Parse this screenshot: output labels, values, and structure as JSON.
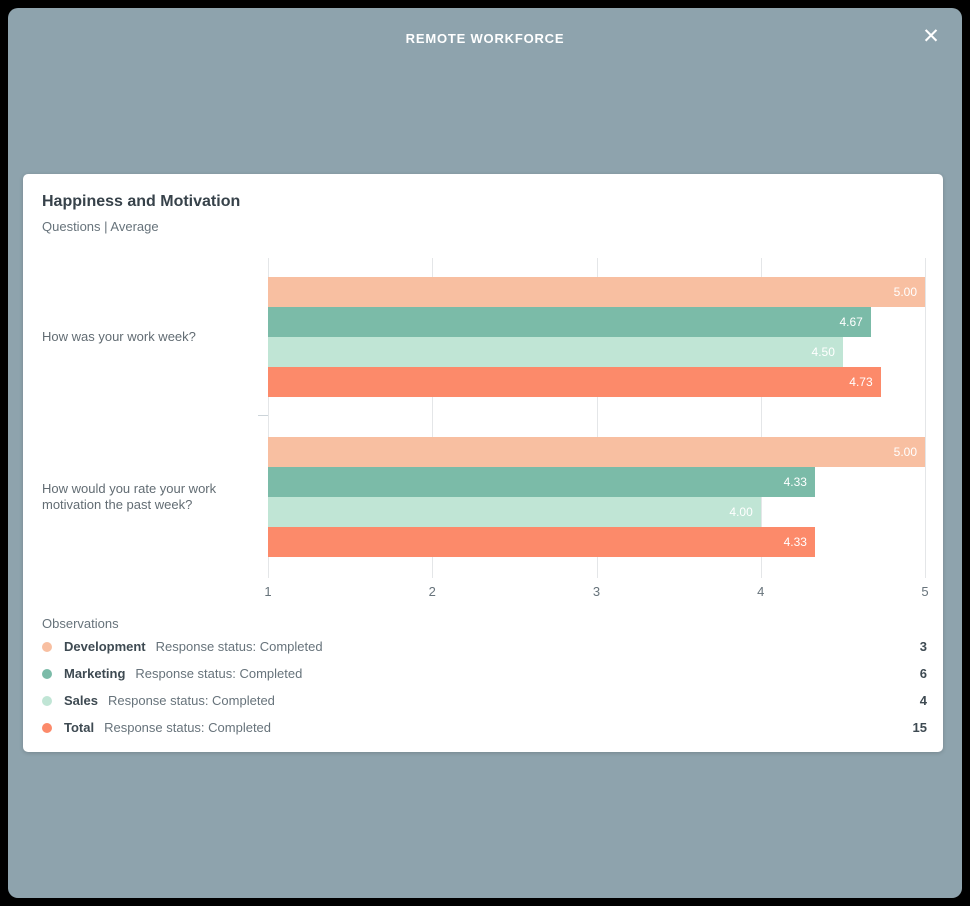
{
  "modal": {
    "title": "REMOTE WORKFORCE",
    "close_icon": "✕"
  },
  "card": {
    "title": "Happiness and Motivation",
    "subtitle": "Questions | Average"
  },
  "chart_data": {
    "type": "bar",
    "orientation": "horizontal",
    "title": "Happiness and Motivation",
    "subtitle": "Questions | Average",
    "categories": [
      "How was your work week?",
      "How would you rate your work motivation the past week?"
    ],
    "series": [
      {
        "name": "Development",
        "color": "#f8bfa1",
        "values": [
          5.0,
          5.0
        ],
        "labels": [
          "5.00",
          "5.00"
        ]
      },
      {
        "name": "Marketing",
        "color": "#7bbba8",
        "values": [
          4.67,
          4.33
        ],
        "labels": [
          "4.67",
          "4.33"
        ]
      },
      {
        "name": "Sales",
        "color": "#c0e5d5",
        "values": [
          4.5,
          4.0
        ],
        "labels": [
          "4.50",
          "4.00"
        ]
      },
      {
        "name": "Total",
        "color": "#fc8a6a",
        "values": [
          4.73,
          4.33
        ],
        "labels": [
          "4.73",
          "4.33"
        ]
      }
    ],
    "xlim": [
      1,
      5
    ],
    "x_ticks": [
      "1",
      "2",
      "3",
      "4",
      "5"
    ],
    "grid": true,
    "legend_position": "bottom",
    "value_label_color": "#ffffff"
  },
  "legend": {
    "header": "Observations",
    "status_prefix": "Response status:",
    "items": [
      {
        "name": "Development",
        "status": "Response status: Completed",
        "count": "3",
        "color": "#f8bfa1"
      },
      {
        "name": "Marketing",
        "status": "Response status: Completed",
        "count": "6",
        "color": "#7bbba8"
      },
      {
        "name": "Sales",
        "status": "Response status: Completed",
        "count": "4",
        "color": "#c0e5d5"
      },
      {
        "name": "Total",
        "status": "Response status: Completed",
        "count": "15",
        "color": "#fc8a6a"
      }
    ]
  },
  "colors": {
    "backdrop": "#000000",
    "modal_bg": "#8ea3ad",
    "card_bg": "#ffffff",
    "title_text": "#37424a",
    "muted_text": "#67737b",
    "gridline": "#e4e6e8"
  }
}
